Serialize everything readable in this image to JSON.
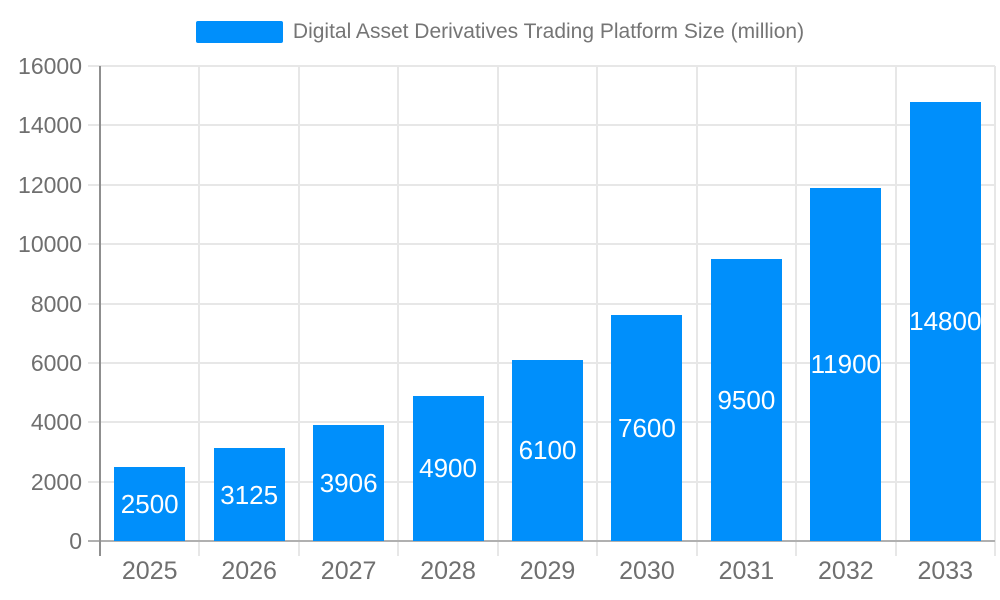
{
  "legend": {
    "label": "Digital Asset Derivatives Trading Platform Size (million)",
    "swatch_color": "#008FFB"
  },
  "chart_data": {
    "type": "bar",
    "title": "Digital Asset Derivatives Trading Platform Size (million)",
    "categories": [
      "2025",
      "2026",
      "2027",
      "2028",
      "2029",
      "2030",
      "2031",
      "2032",
      "2033"
    ],
    "values": [
      2500,
      3125,
      3906,
      4900,
      6100,
      7600,
      9500,
      11900,
      14800
    ],
    "value_labels": [
      "2500",
      "3125",
      "3906",
      "4900",
      "6100",
      "7600",
      "9500",
      "11900",
      "14800"
    ],
    "y_ticks": [
      "0",
      "2000",
      "4000",
      "6000",
      "8000",
      "10000",
      "12000",
      "14000",
      "16000"
    ],
    "ylim": [
      0,
      16000
    ],
    "xlabel": "",
    "ylabel": "",
    "grid": true,
    "legend_position": "top",
    "colors": {
      "bar": "#008FFB",
      "value_label": "#FFFFFF",
      "axis_text": "#6F6F6F",
      "grid_line": "#E7E7E7",
      "y_axis_line": "#8F8F8F",
      "x_axis_line": "#B0B0B0"
    }
  }
}
